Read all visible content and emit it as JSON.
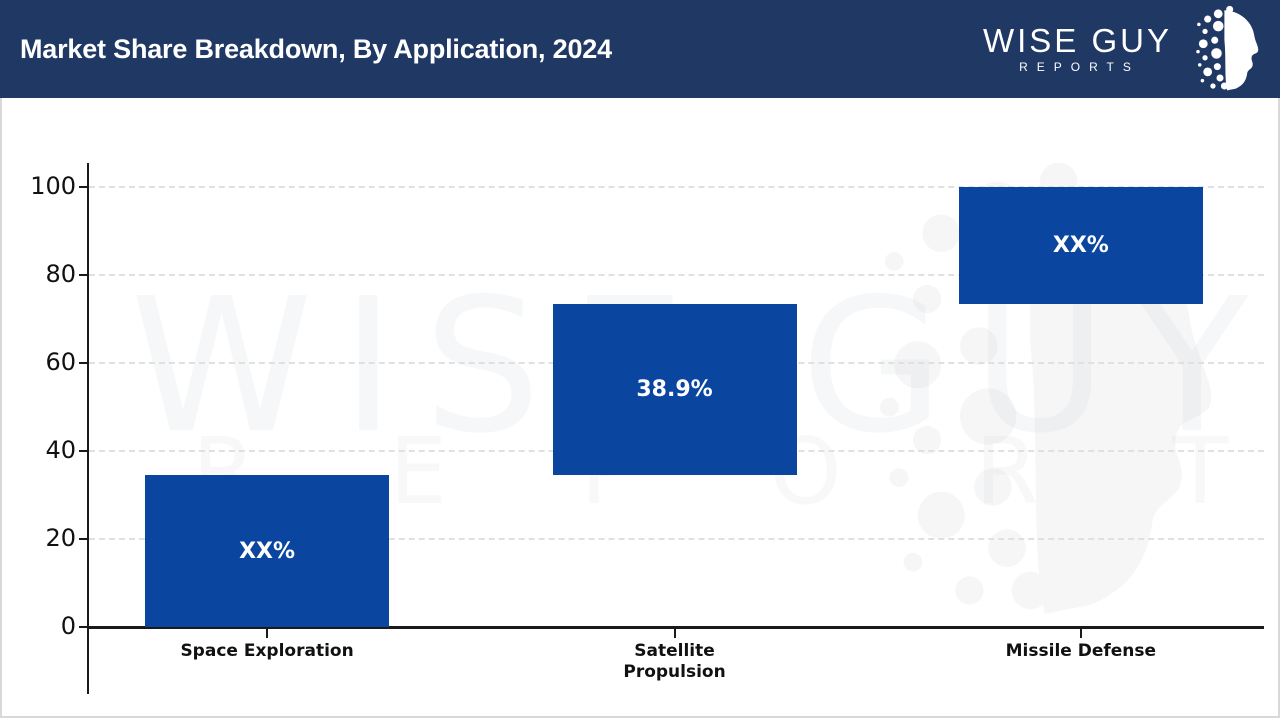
{
  "header": {
    "title": "Market Share Breakdown, By Application, 2024",
    "bg_color": "#1f3864",
    "logo": {
      "line1": "WISE GUY",
      "line2": "REPORTS",
      "icon": "face-profile-dots-icon"
    }
  },
  "watermark": {
    "line1": "WISE GUY",
    "line2": "REPORTS"
  },
  "chart_data": {
    "type": "bar",
    "subtype": "waterfall-segments",
    "title": "Market Share Breakdown, By Application, 2024",
    "categories": [
      "Space Exploration",
      "Satellite Propulsion",
      "Missile Defense"
    ],
    "segments": [
      {
        "category": "Space Exploration",
        "start": 0,
        "end": 34.5,
        "label": "XX%"
      },
      {
        "category": "Satellite Propulsion",
        "start": 34.5,
        "end": 73.4,
        "label": "38.9%"
      },
      {
        "category": "Missile Defense",
        "start": 73.4,
        "end": 100,
        "label": "XX%"
      }
    ],
    "xlabel": "",
    "ylabel": "",
    "ylim": [
      0,
      100
    ],
    "yticks": [
      0,
      20,
      40,
      60,
      80,
      100
    ],
    "grid": "horizontal-dashed",
    "legend": "none",
    "bar_color": "#0a46a0",
    "bar_label_color": "#ffffff",
    "axis_color": "#1a1a1a",
    "grid_color": "#e0e0e0"
  }
}
